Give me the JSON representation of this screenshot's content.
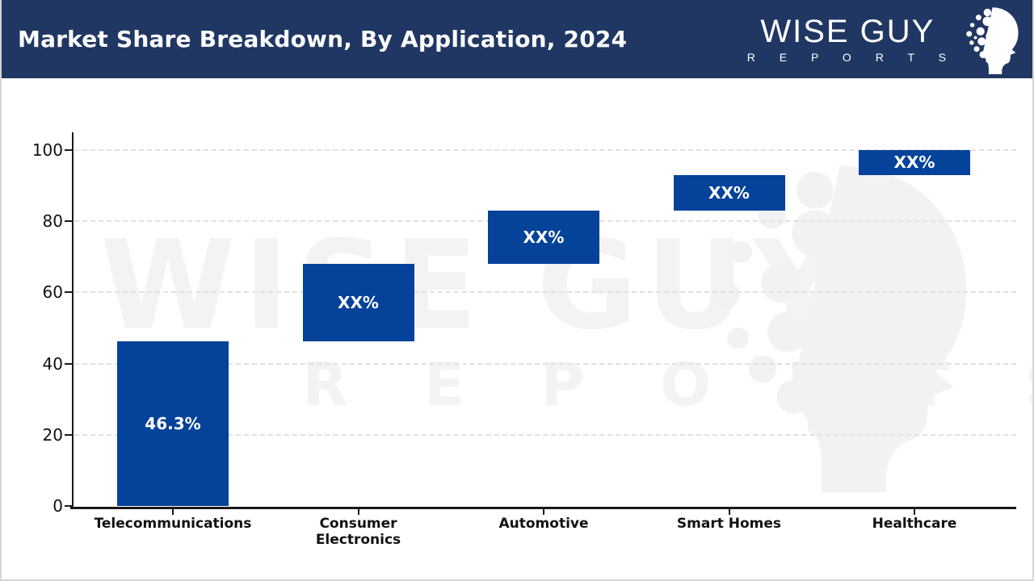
{
  "header": {
    "title": "Market Share Breakdown, By Application, 2024",
    "logo": {
      "line1": "WISE GUY",
      "line2": "R E P O R T S"
    }
  },
  "watermark": {
    "line1": "WISE GUY",
    "line2": "R E P O R T S"
  },
  "colors": {
    "header_bg": "#213763",
    "bar": "#05429a",
    "bar_label_text": "#ffffff",
    "grid": "#e2e2e2",
    "axis": "#1a1a1a",
    "watermark": "#f3f3f3",
    "page_border": "#d6d6d6"
  },
  "chart_data": {
    "type": "bar",
    "subtype": "waterfall",
    "title": "Market Share Breakdown, By Application, 2024",
    "categories": [
      "Telecommunications",
      "Consumer Electronics",
      "Automotive",
      "Smart Homes",
      "Healthcare"
    ],
    "category_labels": [
      "Telecommunications",
      "Consumer\nElectronics",
      "Automotive",
      "Smart Homes",
      "Healthcare"
    ],
    "segments": [
      {
        "category": "Telecommunications",
        "start": 0,
        "end": 46.3,
        "label": "46.3%"
      },
      {
        "category": "Consumer Electronics",
        "start": 46.3,
        "end": 68,
        "label": "XX%"
      },
      {
        "category": "Automotive",
        "start": 68,
        "end": 83,
        "label": "XX%"
      },
      {
        "category": "Smart Homes",
        "start": 83,
        "end": 93,
        "label": "XX%"
      },
      {
        "category": "Healthcare",
        "start": 93,
        "end": 100,
        "label": "XX%"
      }
    ],
    "xlabel": "",
    "ylabel": "",
    "ylim": [
      0,
      100
    ],
    "yticks": [
      0,
      20,
      40,
      60,
      80,
      100
    ],
    "grid": "horizontal-dashed",
    "legend": "none"
  }
}
